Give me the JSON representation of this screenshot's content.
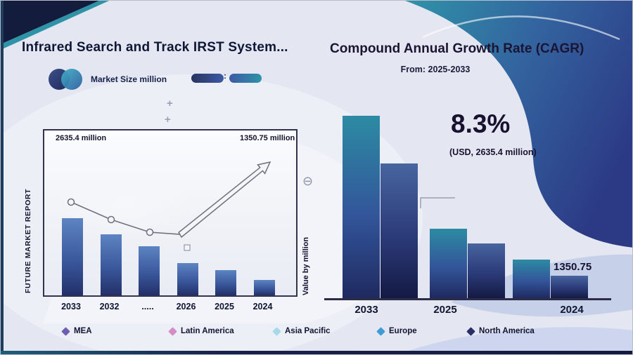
{
  "left_panel": {
    "title": "Infrared Search and Track IRST System...",
    "legend_label": "Market Size million",
    "side_label": "FUTURE MARKET REPORT"
  },
  "right_panel": {
    "title": "Compound Annual Growth Rate (CAGR)",
    "subtitle": "From: 2025-2033",
    "cagr": "8.3%",
    "cagr_detail": "(USD, 2635.4 million)",
    "ylabel": "Value by million"
  },
  "decorations": {
    "plus": "+",
    "circle_minus": "⊖",
    "pill_colon": ":"
  },
  "colors": {
    "accent_teal": "#2f93a8",
    "accent_navy": "#1c2452",
    "bar_blue": "#3a589c"
  },
  "bottom_legend": [
    {
      "label": "MEA",
      "color": "#6f5fb0"
    },
    {
      "label": "Latin America",
      "color": "#d48cc2"
    },
    {
      "label": "Asia Pacific",
      "color": "#a6d9e8"
    },
    {
      "label": "Europe",
      "color": "#3f9ad6"
    },
    {
      "label": "North America",
      "color": "#2a2e66"
    }
  ],
  "chart_data": [
    {
      "type": "bar",
      "title": "Infrared Search and Track IRST System... — Market Size million",
      "categories": [
        "2033",
        "2032",
        ".....",
        "2026",
        "2025",
        "2024"
      ],
      "values": [
        2635.4,
        2300,
        2050,
        1700,
        1550,
        1350.75
      ],
      "annotations": [
        "2635.4 million",
        "1350.75 million"
      ],
      "side_label": "FUTURE MARKET REPORT",
      "trend": "marker line descending from 2033 to 2026 then outlined arrow rising to upper right",
      "legend_position": "top-left",
      "grid": false
    },
    {
      "type": "bar",
      "title": "Compound Annual Growth Rate (CAGR)",
      "subtitle": "From: 2025-2033",
      "cagr_percent": 8.3,
      "cagr_detail": "(USD, 2635.4 million)",
      "ylabel": "Value by million",
      "categories": [
        "2033",
        "2025",
        "2024"
      ],
      "series": [
        {
          "name": "series-1",
          "values": [
            2635.4,
            1730,
            1480
          ]
        },
        {
          "name": "series-2",
          "values": [
            2250,
            1610,
            1350.75
          ]
        }
      ],
      "data_label": "1350.75",
      "ylim": [
        1350.75,
        2635.4
      ],
      "grid": false
    }
  ]
}
